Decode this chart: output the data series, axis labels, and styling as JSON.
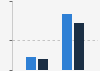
{
  "bar1_values": [
    3,
    13
  ],
  "bar2_values": [
    2.5,
    11
  ],
  "bar1_color": "#2f80d5",
  "bar2_color": "#1a2e44",
  "hline_value": 7,
  "hline_color": "#bbbbbb",
  "ylim": [
    0,
    16
  ],
  "xlim": [
    0.3,
    2.7
  ],
  "background_color": "#f5f5f5",
  "bar_width": 0.28,
  "x_positions": [
    1.0,
    2.0
  ]
}
